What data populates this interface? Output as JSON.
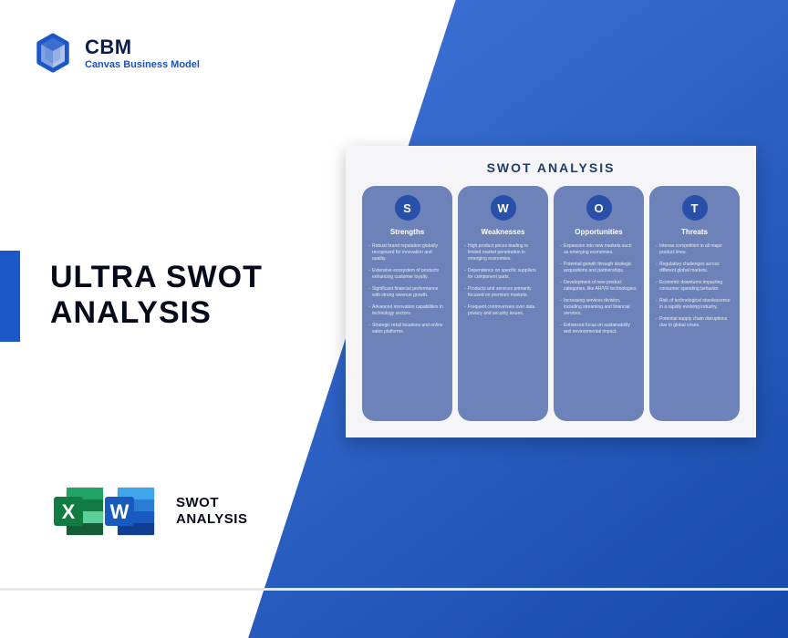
{
  "brand": {
    "short": "CBM",
    "full": "Canvas Business Model",
    "logo_color": "#1c57c7"
  },
  "title_line1": "ULTRA SWOT",
  "title_line2": "ANALYSIS",
  "filetype_label_line1": "SWOT",
  "filetype_label_line2": "ANALYSIS",
  "colors": {
    "bg_gradient_start": "#3b6fd4",
    "bg_gradient_end": "#1548a8",
    "accent": "#1c57c7",
    "text_dark": "#050a1a",
    "swot_card_bg": "#f5f5f7",
    "swot_col_bg": "#6d82b8",
    "swot_circle_bg": "#2850a8",
    "swot_title_color": "#233a6b",
    "excel_green": "#107c41",
    "excel_green_light": "#21a366",
    "word_blue": "#2b579a",
    "word_blue_light": "#41a5ee"
  },
  "swot": {
    "title": "SWOT ANALYSIS",
    "columns": [
      {
        "letter": "S",
        "heading": "Strengths",
        "items": [
          "Robust brand reputation globally recognized for innovation and quality.",
          "Extensive ecosystem of products enhancing customer loyalty.",
          "Significant financial performance with strong revenue growth.",
          "Advanced innovation capabilities in technology sectors.",
          "Strategic retail locations and online sales platforms."
        ]
      },
      {
        "letter": "W",
        "heading": "Weaknesses",
        "items": [
          "High product prices leading to limited market penetration in emerging economies.",
          "Dependence on specific suppliers for component parts.",
          "Products and services primarily focused on premium markets.",
          "Frequent controversies over data privacy and security issues."
        ]
      },
      {
        "letter": "O",
        "heading": "Opportunities",
        "items": [
          "Expansion into new markets such as emerging economies.",
          "Potential growth through strategic acquisitions and partnerships.",
          "Development of new product categories, like AR/VR technologies.",
          "Increasing services division, including streaming and financial services.",
          "Enhanced focus on sustainability and environmental impact."
        ]
      },
      {
        "letter": "T",
        "heading": "Threats",
        "items": [
          "Intense competition in all major product lines.",
          "Regulatory challenges across different global markets.",
          "Economic downturns impacting consumer spending behavior.",
          "Risk of technological obsolescence in a rapidly evolving industry.",
          "Potential supply chain disruptions due to global crises."
        ]
      }
    ]
  }
}
